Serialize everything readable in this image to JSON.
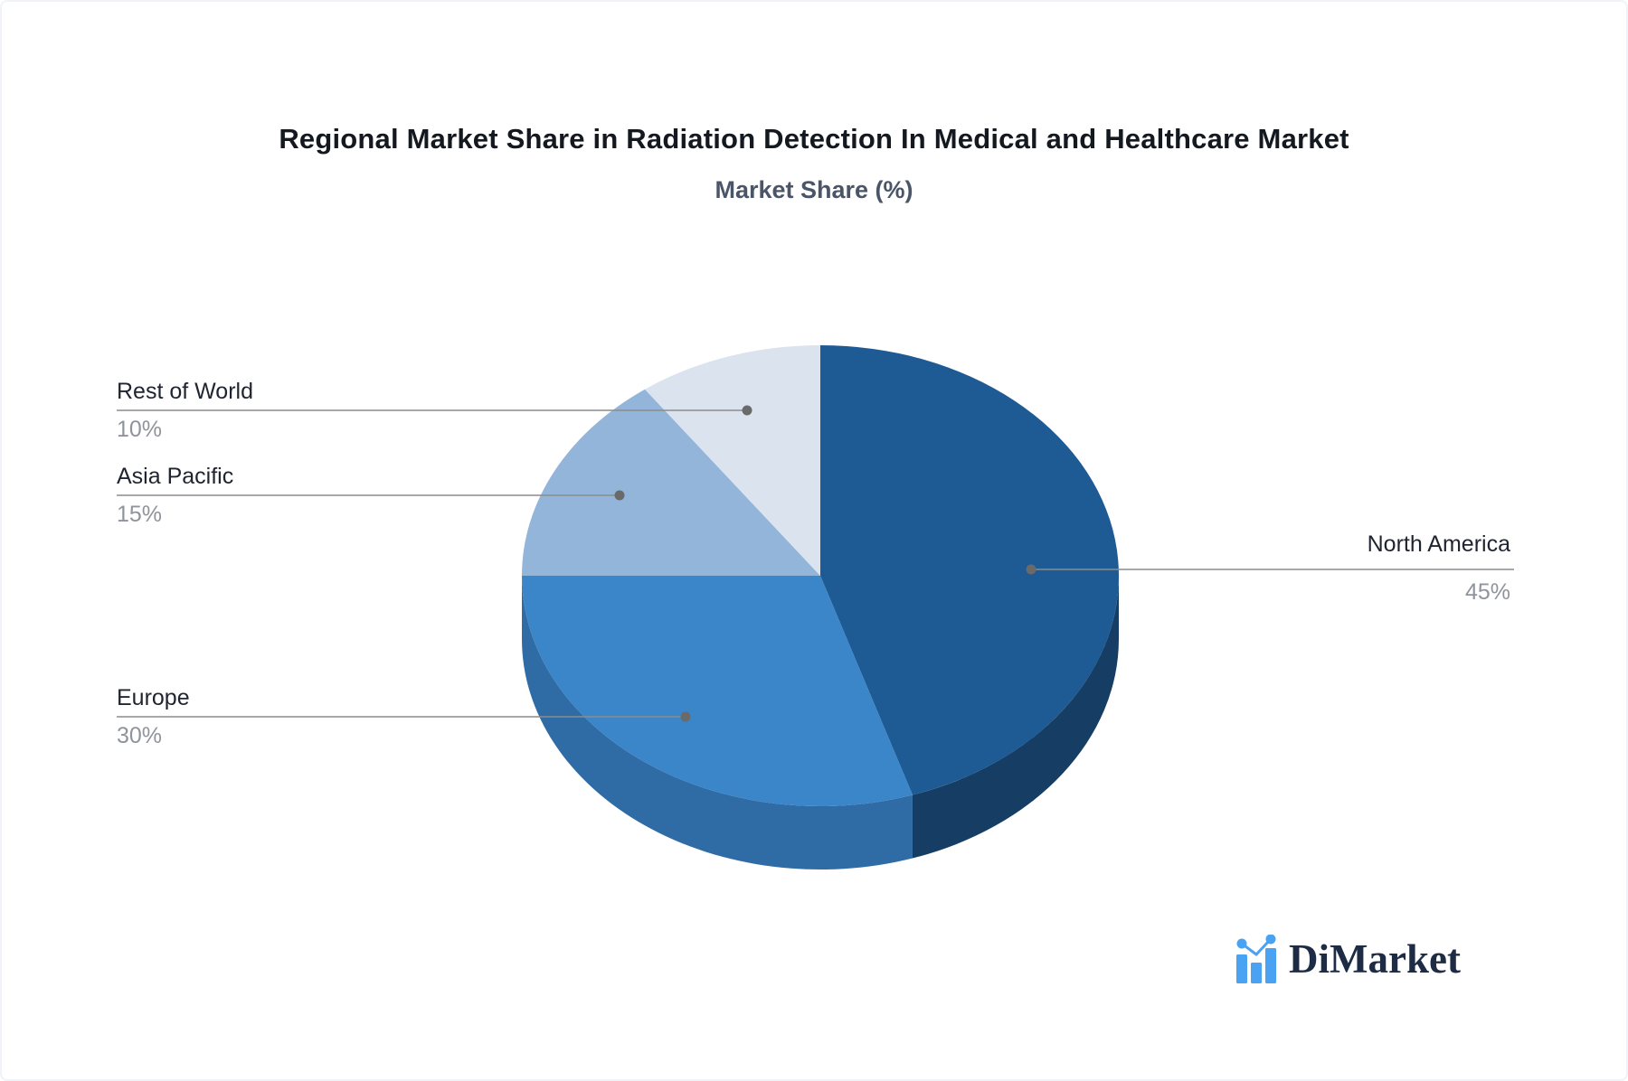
{
  "page": {
    "background_color": "#ffffff",
    "border_color": "#f0f3f7"
  },
  "header": {
    "title": "Regional Market Share in Radiation Detection In Medical and Healthcare Market",
    "subtitle": "Market Share (%)",
    "title_color": "#14181f",
    "subtitle_color": "#4a5568"
  },
  "chart_data": {
    "type": "pie",
    "effect": "3d",
    "title": "Regional Market Share in Radiation Detection In Medical and Healthcare Market",
    "subtitle": "Market Share (%)",
    "unit": "%",
    "start_angle_deg": 0,
    "direction": "clockwise",
    "slices": [
      {
        "label": "North America",
        "value": 45,
        "display": "45%",
        "color": "#1e5a94",
        "side_color": "#163d63"
      },
      {
        "label": "Europe",
        "value": 30,
        "display": "30%",
        "color": "#3a86c8",
        "side_color": "#2f6ba5"
      },
      {
        "label": "Asia Pacific",
        "value": 15,
        "display": "15%",
        "color": "#93b5d9",
        "side_color": "#7ea3c9"
      },
      {
        "label": "Rest of World",
        "value": 10,
        "display": "10%",
        "color": "#dbe3ef",
        "side_color": "#c2cddf"
      }
    ],
    "label_text_color": "#1f2430",
    "value_text_color": "#8f949c",
    "leader_line_color": "#8c8c8c",
    "leader_dot_color": "#6a6a6a",
    "legend_position": "callout-labels"
  },
  "logo": {
    "text": "DiMarket",
    "icon": "bar-chart-logo-icon",
    "icon_color": "#4aa2f3",
    "text_color": "#1d2b45"
  }
}
